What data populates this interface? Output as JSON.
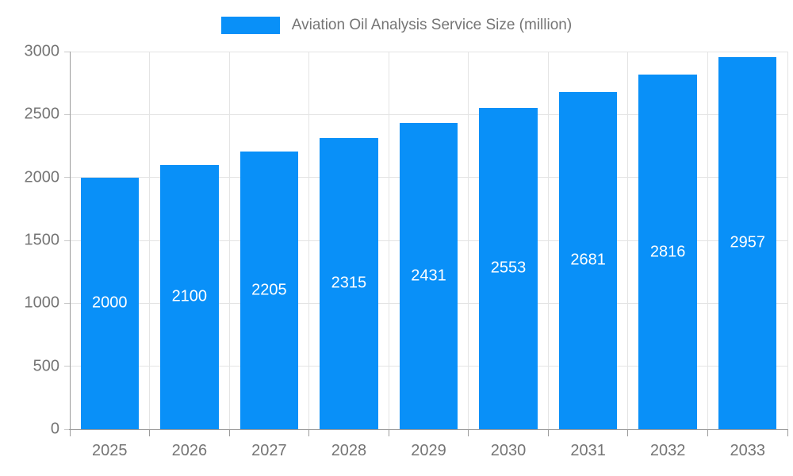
{
  "chart_data": {
    "type": "bar",
    "title": "Aviation Oil Analysis Service Size (million)",
    "legend": {
      "position": "top",
      "entries": [
        "Aviation Oil Analysis Service Size (million)"
      ]
    },
    "categories": [
      "2025",
      "2026",
      "2027",
      "2028",
      "2029",
      "2030",
      "2031",
      "2032",
      "2033"
    ],
    "series": [
      {
        "name": "Aviation Oil Analysis Service Size (million)",
        "values": [
          2000,
          2100,
          2205,
          2315,
          2431,
          2553,
          2681,
          2816,
          2957
        ]
      }
    ],
    "xlabel": "",
    "ylabel": "",
    "ylim": [
      0,
      3000
    ],
    "yticks": [
      0,
      500,
      1000,
      1500,
      2000,
      2500,
      3000
    ],
    "grid": true,
    "bar_width_fraction": 0.73,
    "colors": {
      "bar": "#0990F8",
      "value_label": "#ffffff",
      "axis_text": "#757575",
      "legend_text": "#757575",
      "grid_line": "#e4e4e4",
      "axis_line": "#9b9b9b",
      "y_tick": "#c9c9c9",
      "x_tick": "#9b9b9b",
      "background": "#ffffff"
    }
  }
}
